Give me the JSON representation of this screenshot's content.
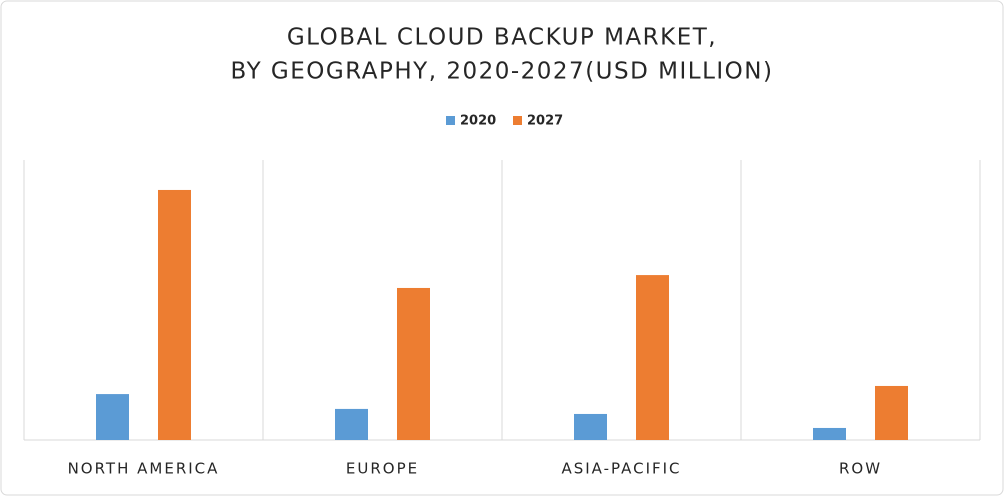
{
  "chart_data": {
    "type": "bar",
    "title": [
      "GLOBAL CLOUD BACKUP MARKET,",
      "BY GEOGRAPHY, 2020-2027(USD MILLION)"
    ],
    "categories": [
      "NORTH AMERICA",
      "EUROPE",
      "ASIA-PACIFIC",
      "ROW"
    ],
    "series": [
      {
        "name": "2020",
        "color": "#5b9bd5",
        "values": [
          16.4,
          11.1,
          9.3,
          4.3
        ]
      },
      {
        "name": "2027",
        "color": "#ed7d31",
        "values": [
          89.3,
          54.3,
          58.9,
          19.3
        ]
      }
    ],
    "ylim": [
      0,
      100
    ]
  }
}
